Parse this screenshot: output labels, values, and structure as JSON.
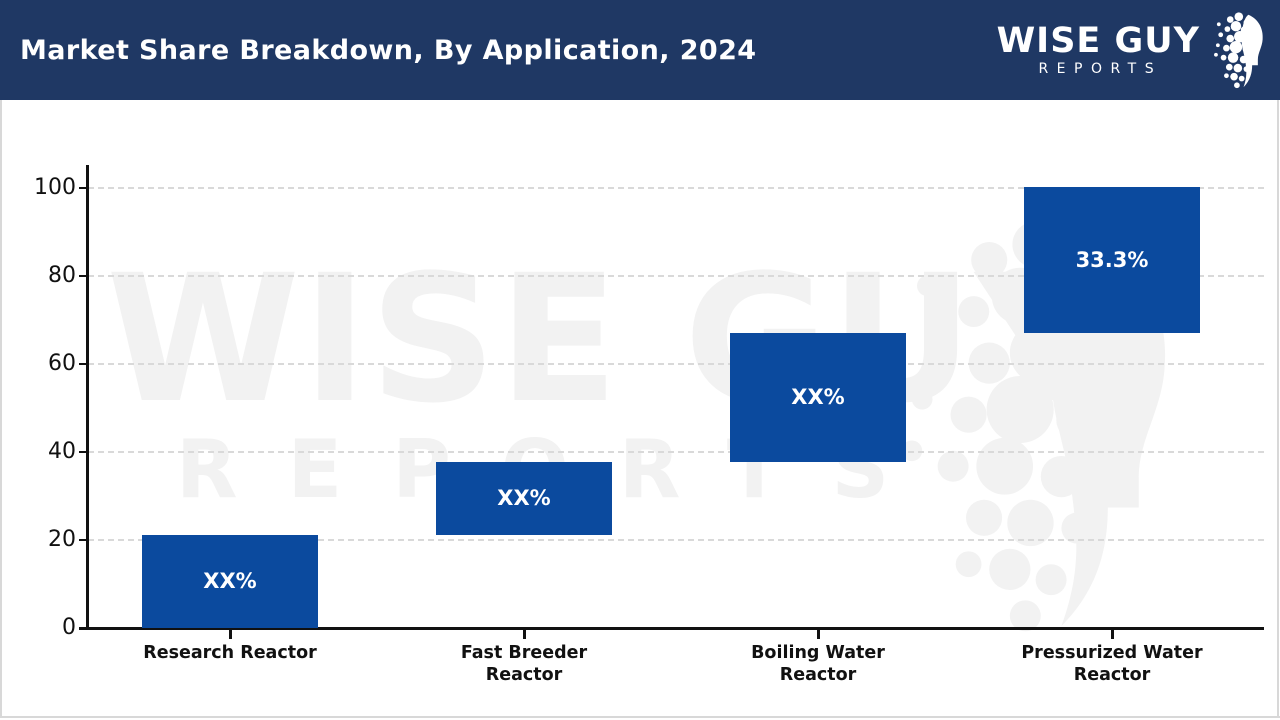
{
  "header": {
    "title": "Market Share Breakdown, By Application, 2024",
    "logo": {
      "brand": "WISE GUY",
      "sub": "REPORTS"
    }
  },
  "watermark": {
    "brand": "WISE GUY",
    "sub": "REPORTS"
  },
  "chart_data": {
    "type": "bar",
    "variant": "floating-segment-waterfall",
    "title": "Market Share Breakdown, By Application, 2024",
    "categories": [
      "Research Reactor",
      "Fast Breeder\nReactor",
      "Boiling Water\nReactor",
      "Pressurized Water\nReactor"
    ],
    "segments": [
      {
        "category": "Research Reactor",
        "start": 0,
        "end": 21.2,
        "label": "XX%"
      },
      {
        "category": "Fast Breeder Reactor",
        "start": 21.2,
        "end": 37.8,
        "label": "XX%"
      },
      {
        "category": "Boiling Water Reactor",
        "start": 37.8,
        "end": 67.0,
        "label": "XX%"
      },
      {
        "category": "Pressurized Water Reactor",
        "start": 67.0,
        "end": 100.3,
        "label": "33.3%"
      }
    ],
    "xlabel": "",
    "ylabel": "",
    "ylim": [
      0,
      105
    ],
    "yticks": [
      0,
      20,
      40,
      60,
      80,
      100
    ],
    "grid": {
      "horizontal": true,
      "style": "dashed"
    },
    "legend_position": "none",
    "colors": {
      "bar": "#0b4a9e",
      "bar_label": "#ffffff",
      "axis": "#111111",
      "tick_label": "#111111",
      "gridline": "#d9d9d9",
      "header_bg": "#1f3864",
      "watermark": "#f2f2f2"
    }
  }
}
